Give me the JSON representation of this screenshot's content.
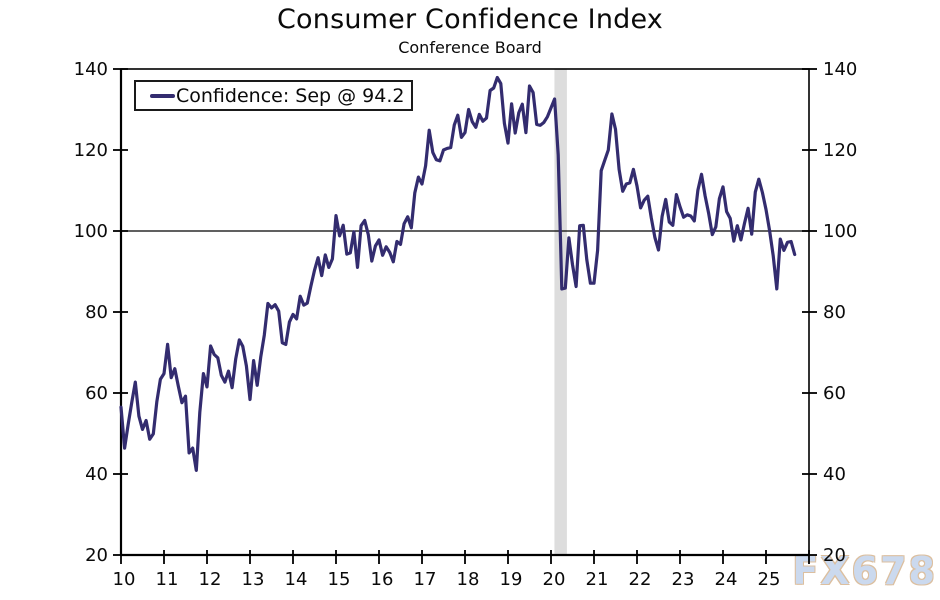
{
  "page": {
    "watermark": "FX678"
  },
  "chart_data": {
    "type": "line",
    "title": "Consumer Confidence Index",
    "subtitle": "Conference Board",
    "legend": {
      "label": "Confidence: Sep @ 94.2",
      "position": "top-left"
    },
    "x": {
      "start_year": 2010,
      "end": "2025-09",
      "tick_labels": [
        "10",
        "11",
        "12",
        "13",
        "14",
        "15",
        "16",
        "17",
        "18",
        "19",
        "20",
        "21",
        "22",
        "23",
        "24",
        "25"
      ],
      "range_years": [
        2010,
        2025.98
      ]
    },
    "y": {
      "ticks": [
        20,
        40,
        60,
        80,
        100,
        120,
        140
      ],
      "range": [
        20,
        140
      ],
      "label_sides": "both"
    },
    "reference_line_y": 100,
    "recession_band_years": [
      2020.08,
      2020.37
    ],
    "grid": "off",
    "series": [
      {
        "name": "Confidence",
        "start": "2010-01",
        "end": "2025-09",
        "frequency": "monthly",
        "values": [
          56.5,
          46.4,
          52.3,
          57.7,
          62.7,
          54.3,
          51.0,
          53.2,
          48.6,
          49.9,
          57.8,
          63.4,
          64.8,
          72.0,
          63.8,
          66.0,
          61.7,
          57.6,
          59.2,
          45.2,
          46.4,
          40.9,
          55.2,
          64.8,
          61.5,
          71.6,
          69.5,
          68.7,
          64.4,
          62.7,
          65.4,
          61.3,
          68.4,
          73.1,
          71.5,
          66.7,
          58.4,
          68.0,
          61.9,
          69.0,
          74.3,
          82.1,
          81.0,
          81.8,
          80.2,
          72.4,
          72.0,
          77.5,
          79.4,
          78.3,
          83.9,
          81.7,
          82.2,
          86.4,
          90.3,
          93.4,
          89.0,
          94.1,
          91.0,
          93.1,
          103.8,
          98.8,
          101.4,
          94.3,
          94.6,
          99.8,
          91.0,
          101.3,
          102.6,
          99.1,
          92.6,
          96.3,
          97.8,
          94.0,
          96.1,
          94.7,
          92.4,
          97.4,
          96.7,
          101.8,
          103.5,
          100.8,
          109.4,
          113.3,
          111.6,
          116.1,
          124.9,
          119.4,
          117.6,
          117.3,
          120.0,
          120.4,
          120.6,
          126.2,
          128.6,
          123.1,
          124.3,
          130.0,
          127.0,
          125.6,
          128.8,
          127.1,
          127.9,
          134.7,
          135.3,
          137.9,
          136.4,
          126.6,
          121.7,
          131.4,
          124.2,
          129.2,
          131.3,
          124.3,
          135.8,
          134.2,
          126.3,
          126.1,
          126.8,
          128.2,
          130.4,
          132.6,
          118.8,
          85.7,
          85.9,
          98.3,
          91.7,
          86.3,
          101.3,
          101.4,
          92.9,
          87.1,
          87.1,
          95.2,
          114.9,
          117.5,
          120.0,
          128.9,
          125.1,
          115.2,
          109.8,
          111.6,
          111.9,
          115.2,
          111.1,
          105.7,
          107.6,
          108.6,
          103.2,
          98.4,
          95.3,
          103.6,
          107.8,
          102.2,
          101.4,
          109.0,
          106.0,
          103.4,
          104.0,
          103.7,
          102.5,
          110.1,
          114.0,
          108.7,
          104.3,
          99.1,
          101.0,
          108.0,
          110.9,
          104.8,
          103.1,
          97.5,
          101.3,
          97.8,
          101.9,
          105.6,
          99.2,
          109.6,
          112.8,
          109.5,
          105.3,
          100.1,
          93.9,
          85.7,
          98.0,
          95.2,
          97.2,
          97.4,
          94.2
        ]
      }
    ],
    "colors": {
      "line": "#332c6f",
      "recession_band": "#dddddd",
      "axis": "#000000",
      "text": "#0a0a0a",
      "watermark_fill": "#cbd9ee",
      "watermark_edge": "#dcbf9f"
    }
  }
}
